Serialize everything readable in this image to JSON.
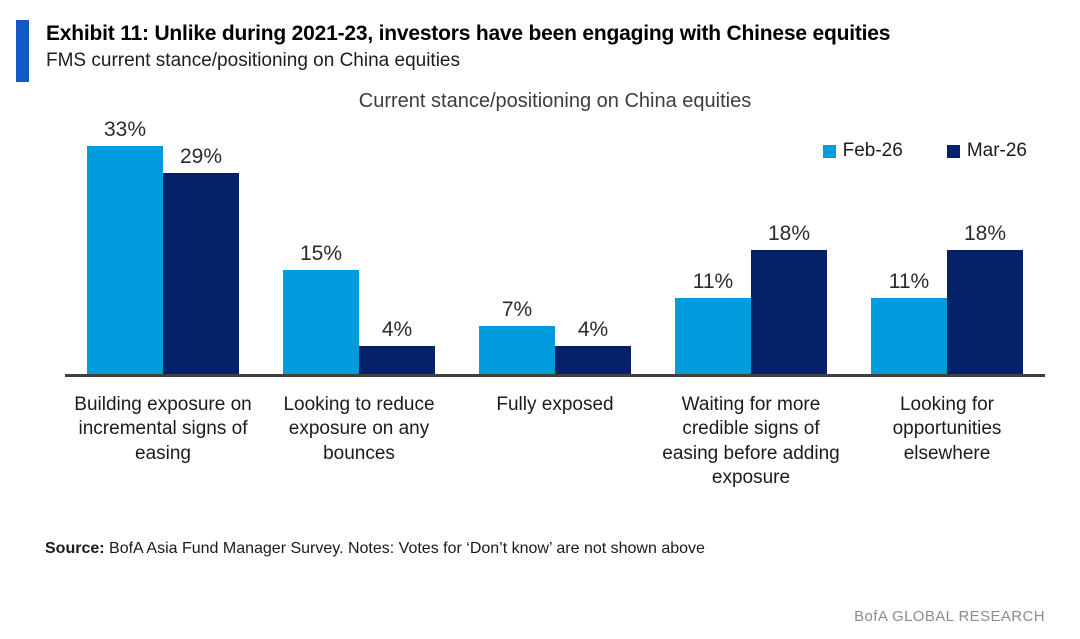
{
  "header": {
    "exhibit_title": "Exhibit 11: Unlike during 2021-23, investors have been engaging with Chinese equities",
    "subtitle": "FMS current stance/positioning on China equities"
  },
  "chart_data": {
    "type": "bar",
    "title": "Current stance/positioning on China equities",
    "categories": [
      "Building exposure on incremental signs of easing",
      "Looking to reduce exposure on any bounces",
      "Fully exposed",
      "Waiting for more credible signs of easing before adding exposure",
      "Looking for opportunities elsewhere"
    ],
    "series": [
      {
        "name": "Feb-26",
        "color": "#009CDE",
        "values": [
          33,
          15,
          7,
          11,
          11
        ]
      },
      {
        "name": "Mar-26",
        "color": "#042169",
        "values": [
          29,
          4,
          4,
          18,
          18
        ]
      }
    ],
    "value_suffix": "%",
    "ylim": [
      0,
      35
    ],
    "grid": false,
    "legend_position": "top-right",
    "xlabel": "",
    "ylabel": ""
  },
  "footer": {
    "source_label": "Source:",
    "source_text": "BofA Asia Fund Manager Survey. Notes: Votes for ‘Don’t know’ are not shown above",
    "brand": "BofA GLOBAL RESEARCH"
  },
  "colors": {
    "accent_bar": "#1458C8",
    "axis": "#404040",
    "feb_26": "#009CDE",
    "mar_26": "#042169"
  }
}
